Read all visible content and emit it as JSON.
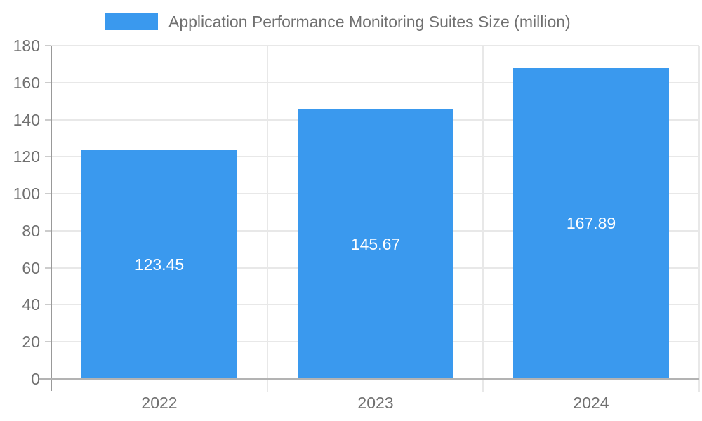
{
  "legend": {
    "label": "Application Performance Monitoring Suites Size (million)"
  },
  "chart_data": {
    "type": "bar",
    "title": "Application Performance Monitoring Suites Size (million)",
    "categories": [
      "2022",
      "2023",
      "2024"
    ],
    "values": [
      123.45,
      145.67,
      167.89
    ],
    "value_labels": [
      "123.45",
      "145.67",
      "167.89"
    ],
    "xlabel": "",
    "ylabel": "",
    "ylim": [
      0,
      180
    ],
    "yticks": [
      0,
      20,
      40,
      60,
      80,
      100,
      120,
      140,
      160,
      180
    ],
    "grid": true,
    "legend_position": "top",
    "colors": {
      "bar": "#3A99EE",
      "value_label": "#FFFFFF",
      "axis_text": "#707070",
      "axis_line": "#999999",
      "baseline": "#B3B3B3",
      "gridline": "#E8E8E8",
      "tick": "#CCCCCC",
      "background": "#FFFFFF"
    }
  }
}
